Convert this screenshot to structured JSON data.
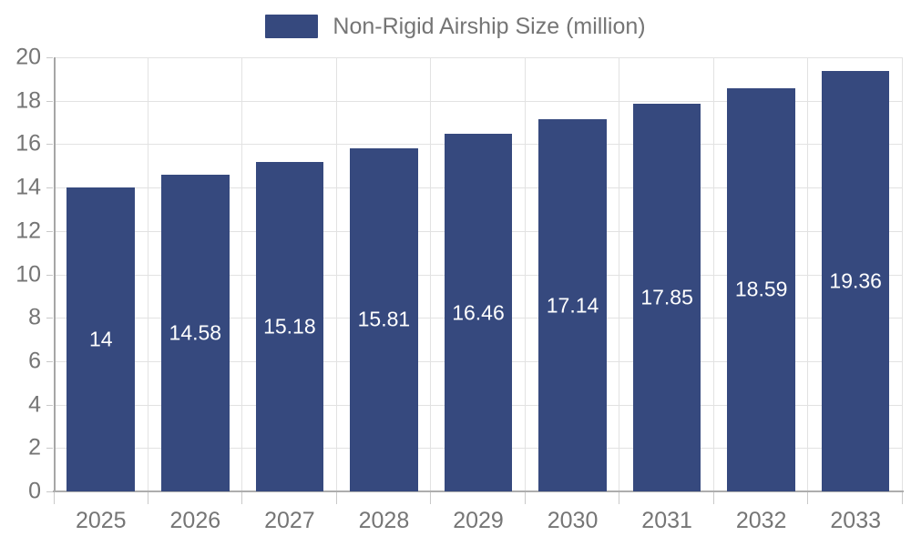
{
  "chart_data": {
    "type": "bar",
    "title": "",
    "legend": "Non-Rigid Airship Size (million)",
    "legend_position": "top",
    "categories": [
      "2025",
      "2026",
      "2027",
      "2028",
      "2029",
      "2030",
      "2031",
      "2032",
      "2033"
    ],
    "series": [
      {
        "name": "Non-Rigid Airship Size (million)",
        "values": [
          14,
          14.58,
          15.18,
          15.81,
          16.46,
          17.14,
          17.85,
          18.59,
          19.36
        ],
        "value_labels": [
          "14",
          "14.58",
          "15.18",
          "15.81",
          "16.46",
          "17.14",
          "17.85",
          "18.59",
          "19.36"
        ]
      }
    ],
    "xlabel": "",
    "ylabel": "",
    "ylim": [
      0,
      20
    ],
    "yticks": [
      0,
      2,
      4,
      6,
      8,
      10,
      12,
      14,
      16,
      18,
      20
    ],
    "grid": true,
    "colors": {
      "bar": "#36497E",
      "value_label": "#FFFFFF",
      "axis_text": "#757575",
      "grid_line": "#E2E2E2",
      "axis_line_left": "#A6A6A6",
      "axis_line_bottom": "#ADADAD",
      "tick_mark": "#C9C9C9",
      "background": "#FFFFFF"
    }
  }
}
